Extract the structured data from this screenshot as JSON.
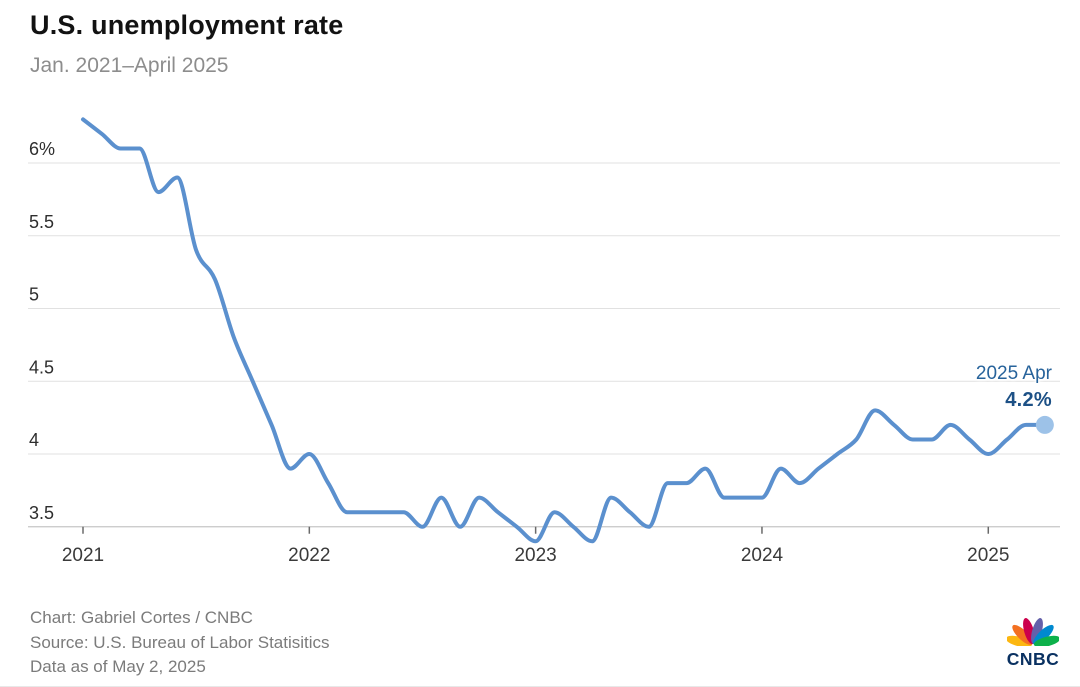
{
  "header": {
    "title": "U.S. unemployment rate",
    "subtitle": "Jan. 2021–April 2025"
  },
  "chart_data": {
    "type": "line",
    "title": "U.S. unemployment rate",
    "subtitle": "Jan. 2021–April 2025",
    "unit": "percent",
    "x_range": [
      "2021 Jan",
      "2025 Apr"
    ],
    "x_tick_labels": [
      "2021",
      "2022",
      "2023",
      "2024",
      "2025"
    ],
    "y_tick_labels": [
      "6%",
      "5.5",
      "5",
      "4.5",
      "4",
      "3.5"
    ],
    "y_tick_values": [
      6,
      5.5,
      5,
      4.5,
      4,
      3.5
    ],
    "ylim": [
      3.3,
      6.4
    ],
    "grid": "horizontal",
    "legend": "none",
    "line_color": "#5b90ce",
    "dot_color": "#9dc2e8",
    "series": {
      "name": "U.S. unemployment rate",
      "monthly_values_by_year": {
        "2021": [
          6.3,
          6.2,
          6.1,
          6.1,
          5.8,
          5.9,
          5.4,
          5.2,
          4.8,
          4.5,
          4.2,
          3.9
        ],
        "2022": [
          4.0,
          3.8,
          3.6,
          3.6,
          3.6,
          3.6,
          3.5,
          3.7,
          3.5,
          3.7,
          3.6,
          3.5
        ],
        "2023": [
          3.4,
          3.6,
          3.5,
          3.4,
          3.7,
          3.6,
          3.5,
          3.8,
          3.8,
          3.9,
          3.7,
          3.7
        ],
        "2024": [
          3.7,
          3.9,
          3.8,
          3.9,
          4.0,
          4.1,
          4.3,
          4.2,
          4.1,
          4.1,
          4.2,
          4.1
        ],
        "2025": [
          4.0,
          4.1,
          4.2,
          4.2
        ]
      }
    },
    "end_annotation": {
      "label": "2025 Apr",
      "value_label": "4.2%",
      "label_color": "#27639b",
      "value_color": "#1d5186"
    }
  },
  "footer": {
    "chart_credit": "Chart: Gabriel Cortes / CNBC",
    "source": "Source: U.S. Bureau of Labor Statisitics",
    "data_as_of": "Data as of May 2, 2025"
  },
  "logo": {
    "wordmark": "CNBC",
    "wordmark_color": "#0a3161",
    "peacock_colors": [
      "#fcb711",
      "#f37021",
      "#cc004c",
      "#6460aa",
      "#0089d0",
      "#0db14b"
    ]
  }
}
